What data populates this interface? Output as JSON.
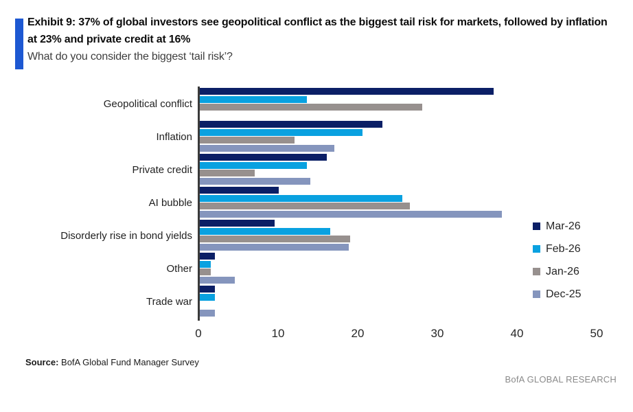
{
  "header": {
    "accent_color": "#1D58D2",
    "title": "Exhibit 9: 37% of global investors see geopolitical conflict as the biggest tail risk for markets, followed by inflation at 23% and private credit at 16%",
    "subtitle": "What do you consider the biggest ‘tail risk’?"
  },
  "chart_data": {
    "type": "bar",
    "orientation": "horizontal",
    "title": "What do you consider the biggest ‘tail risk’?",
    "categories": [
      "Geopolitical conflict",
      "Inflation",
      "Private credit",
      "AI bubble",
      "Disorderly rise in bond yields",
      "Other",
      "Trade war"
    ],
    "series": [
      {
        "name": "Mar-26",
        "color": "#0B1F66",
        "values": [
          37,
          23,
          16,
          10,
          9.5,
          2,
          2
        ]
      },
      {
        "name": "Feb-26",
        "color": "#09A1E0",
        "values": [
          13.5,
          20.5,
          13.5,
          25.5,
          16.5,
          1.5,
          2
        ]
      },
      {
        "name": "Jan-26",
        "color": "#97908E",
        "values": [
          28,
          12,
          7,
          26.5,
          19,
          1.5,
          0
        ]
      },
      {
        "name": "Dec-25",
        "color": "#8595BD",
        "values": [
          0,
          17,
          14,
          38,
          18.8,
          4.5,
          2
        ]
      }
    ],
    "x_ticks": [
      0,
      10,
      20,
      30,
      40,
      50
    ],
    "xlim": [
      0,
      50
    ],
    "unit": "%",
    "grid": false,
    "legend_position": "right"
  },
  "footer": {
    "source_label": "Source:",
    "source_text": " BofA Global Fund Manager Survey",
    "branding": "BofA GLOBAL RESEARCH"
  }
}
